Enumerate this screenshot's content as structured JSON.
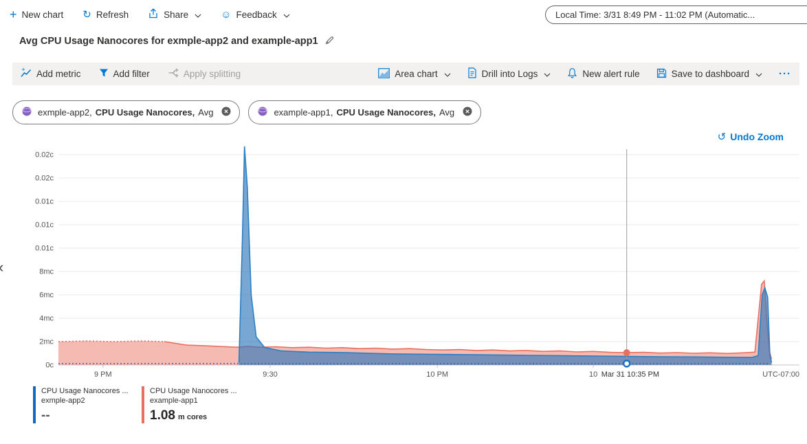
{
  "top_bar": {
    "new_chart": "New chart",
    "refresh": "Refresh",
    "share": "Share",
    "feedback": "Feedback",
    "time_range": "Local Time: 3/31 8:49 PM - 11:02 PM (Automatic..."
  },
  "title": "Avg CPU Usage Nanocores for exmple-app2 and example-app1",
  "toolbar": {
    "add_metric": "Add metric",
    "add_filter": "Add filter",
    "apply_splitting": "Apply splitting",
    "chart_type": "Area chart",
    "drill_into_logs": "Drill into Logs",
    "new_alert_rule": "New alert rule",
    "save_to_dashboard": "Save to dashboard"
  },
  "icons": {
    "plus_glyph": "+",
    "refresh_glyph": "↻",
    "feedback_glyph": "☺",
    "undo_glyph": "↺",
    "more_glyph": "···"
  },
  "pills": [
    {
      "app": "exmple-app2,",
      "metric": "CPU Usage Nanocores,",
      "agg": "Avg"
    },
    {
      "app": "example-app1,",
      "metric": "CPU Usage Nanocores,",
      "agg": "Avg"
    }
  ],
  "undo_zoom": "Undo Zoom",
  "chart_data": {
    "type": "area",
    "title": "Avg CPU Usage Nanocores for exmple-app2 and example-app1",
    "unit": "cores",
    "x_domain_minutes": [
      0,
      133
    ],
    "x_start_time": "8:49 PM",
    "x_end_time": "11:02 PM",
    "x_ticks": [
      {
        "m": 8,
        "label": "9 PM"
      },
      {
        "m": 38,
        "label": "9:30"
      },
      {
        "m": 68,
        "label": "10 PM"
      },
      {
        "m": 96,
        "label": "10"
      }
    ],
    "x_end_label": "UTC-07:00",
    "y_ticks": [
      {
        "v": 0,
        "label": "0c"
      },
      {
        "v": 0.002,
        "label": "2mc"
      },
      {
        "v": 0.004,
        "label": "4mc"
      },
      {
        "v": 0.006,
        "label": "6mc"
      },
      {
        "v": 0.008,
        "label": "8mc"
      },
      {
        "v": 0.01,
        "label": "0.01c"
      },
      {
        "v": 0.012,
        "label": "0.01c"
      },
      {
        "v": 0.014,
        "label": "0.01c"
      },
      {
        "v": 0.016,
        "label": "0.02c"
      },
      {
        "v": 0.018,
        "label": "0.02c"
      }
    ],
    "crosshair": {
      "m": 102,
      "label": "Mar 31 10:35 PM",
      "marker_red_value": 0.00105,
      "marker_blue_value": 0.00012
    },
    "baseline": {
      "from": 0,
      "to": 127.6,
      "v": 0.00012,
      "color": "#1a6fc4"
    },
    "series": [
      {
        "name": "CPU Usage Nanocores (Avg), example-app1",
        "color": "#e8705f",
        "fill": "rgba(236,118,101,0.5)",
        "segments": [
          {
            "style": "dashed",
            "points": [
              [
                0,
                0.002
              ],
              [
                5,
                0.00205
              ],
              [
                10,
                0.002
              ],
              [
                15,
                0.00205
              ],
              [
                19,
                0.002
              ]
            ]
          },
          {
            "style": "solid",
            "points": [
              [
                19,
                0.002
              ],
              [
                21,
                0.00185
              ],
              [
                23,
                0.0017
              ],
              [
                26,
                0.00165
              ],
              [
                29,
                0.00158
              ],
              [
                32,
                0.00152
              ],
              [
                34,
                0.00158
              ],
              [
                36,
                0.00152
              ],
              [
                39,
                0.00156
              ],
              [
                42,
                0.00148
              ],
              [
                45,
                0.00152
              ],
              [
                48,
                0.00144
              ],
              [
                51,
                0.00148
              ],
              [
                54,
                0.0014
              ],
              [
                57,
                0.00144
              ],
              [
                60,
                0.00136
              ],
              [
                63,
                0.0014
              ],
              [
                66,
                0.00132
              ],
              [
                69,
                0.00128
              ],
              [
                72,
                0.00132
              ],
              [
                75,
                0.00124
              ],
              [
                78,
                0.00128
              ],
              [
                81,
                0.0012
              ],
              [
                84,
                0.00124
              ],
              [
                87,
                0.00116
              ],
              [
                90,
                0.0012
              ],
              [
                93,
                0.00112
              ],
              [
                96,
                0.00116
              ],
              [
                99,
                0.00108
              ],
              [
                102,
                0.00105
              ],
              [
                105,
                0.00108
              ],
              [
                108,
                0.00102
              ],
              [
                111,
                0.00106
              ],
              [
                114,
                0.001
              ],
              [
                117,
                0.00104
              ],
              [
                120,
                0.00098
              ],
              [
                123,
                0.00104
              ],
              [
                125,
                0.0011
              ],
              [
                126.2,
                0.0069
              ],
              [
                126.7,
                0.0072
              ],
              [
                127.2,
                0.0035
              ],
              [
                127.6,
                0.0012
              ],
              [
                128,
                0.0005
              ]
            ]
          }
        ]
      },
      {
        "name": "CPU Usage Nanocores (Avg), exmple-app2",
        "color": "#2b7fc2",
        "fill": "rgba(47,120,188,0.65)",
        "segments": [
          {
            "style": "solid",
            "points": [
              [
                32.4,
                0.0002
              ],
              [
                33,
                0.0105
              ],
              [
                33.4,
                0.0187
              ],
              [
                33.9,
                0.0152
              ],
              [
                34.6,
                0.006
              ],
              [
                35.5,
                0.0024
              ],
              [
                37,
                0.0015
              ],
              [
                40,
                0.0012
              ],
              [
                45,
                0.0011
              ],
              [
                52,
                0.00105
              ],
              [
                60,
                0.00095
              ],
              [
                70,
                0.0009
              ],
              [
                80,
                0.00085
              ],
              [
                90,
                0.0008
              ],
              [
                100,
                0.00075
              ],
              [
                108,
                0.0007
              ],
              [
                116,
                0.00068
              ],
              [
                122,
                0.00065
              ],
              [
                124.5,
                0.00065
              ],
              [
                125.6,
                0.0008
              ],
              [
                126.3,
                0.006
              ],
              [
                126.8,
                0.0066
              ],
              [
                127.3,
                0.0058
              ],
              [
                127.7,
                0.0008
              ],
              [
                128,
                0.0002
              ]
            ]
          }
        ]
      }
    ]
  },
  "legend": [
    {
      "title": "CPU Usage Nanocores ...",
      "app": "exmple-app2",
      "value": "--",
      "unit": "",
      "color": "#1169bc"
    },
    {
      "title": "CPU Usage Nanocores ...",
      "app": "example-app1",
      "value": "1.08",
      "unit": "m cores",
      "color": "#e8705f"
    }
  ]
}
